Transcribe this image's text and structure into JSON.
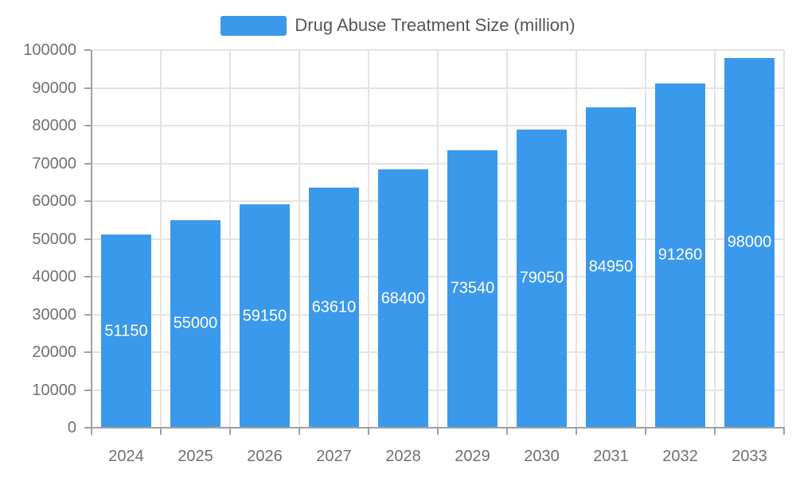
{
  "chart_data": {
    "type": "bar",
    "legend": "Drug Abuse Treatment Size (million)",
    "legend_position": "top-center",
    "categories": [
      "2024",
      "2025",
      "2026",
      "2027",
      "2028",
      "2029",
      "2030",
      "2031",
      "2032",
      "2033"
    ],
    "values": [
      51150,
      55000,
      59150,
      63610,
      68400,
      73540,
      79050,
      84950,
      91260,
      98000
    ],
    "value_labels": [
      "51150",
      "55000",
      "59150",
      "63610",
      "68400",
      "73540",
      "79050",
      "84950",
      "91260",
      "98000"
    ],
    "bar_label_position": "inside-center",
    "xlabel": "",
    "ylabel": "",
    "ylim": [
      0,
      100000
    ],
    "ytick_interval": 10000,
    "ytick_labels": [
      "0",
      "10000",
      "20000",
      "30000",
      "40000",
      "50000",
      "60000",
      "70000",
      "80000",
      "90000",
      "100000"
    ],
    "grid": true,
    "colors": {
      "bar": "#3B99EC",
      "bar_label": "#FFFFFF",
      "grid_line": "#E3E3E3",
      "axis_line": "#A0A0A0",
      "tick_label": "#707070",
      "legend_text": "#555555",
      "background": "#FFFFFF"
    }
  }
}
